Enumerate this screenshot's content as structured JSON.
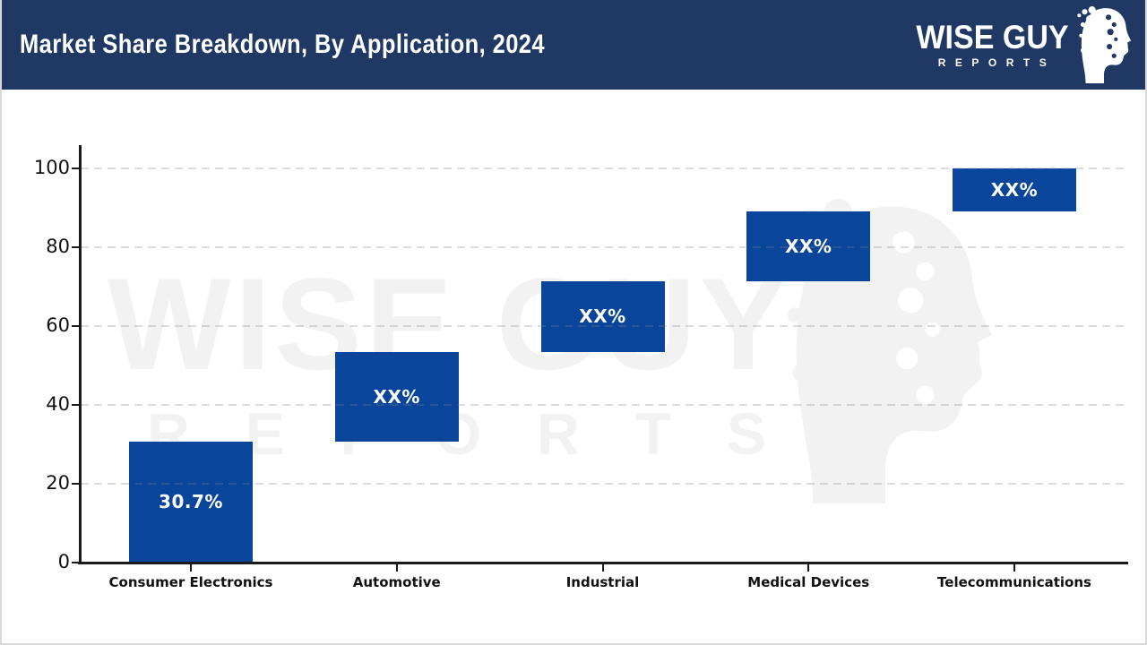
{
  "header": {
    "title": "Market Share Breakdown, By Application, 2024",
    "logo": {
      "line1": "WISE GUY",
      "line2": "REPORTS",
      "face_icon": "dotted-head-profile-icon"
    }
  },
  "watermark": {
    "line1": "WISE GUY",
    "line2": "REPORTS",
    "face_icon": "dotted-head-profile-watermark"
  },
  "colors": {
    "header_bg": "#1f3864",
    "bar": "#0a459c",
    "axis": "#1a1a1a",
    "watermark": "#f2f2f2",
    "grid": "#dfdfdf",
    "title_text": "#ffffff",
    "bar_label_text": "#ffffff"
  },
  "chart_data": {
    "type": "bar",
    "subtype": "waterfall",
    "title": "Market Share Breakdown, By Application, 2024",
    "xlabel": "",
    "ylabel": "",
    "ylim": [
      0,
      100
    ],
    "yticks": [
      0,
      20,
      40,
      60,
      80,
      100
    ],
    "grid": "horizontal-dashed",
    "legend": "none",
    "categories": [
      "Consumer Electronics",
      "Automotive",
      "Industrial",
      "Medical Devices",
      "Telecommunications"
    ],
    "segments": [
      {
        "category": "Consumer Electronics",
        "start": 0,
        "end": 30.7,
        "label": "30.7%"
      },
      {
        "category": "Automotive",
        "start": 30.7,
        "end": 53.5,
        "label": "XX%"
      },
      {
        "category": "Industrial",
        "start": 53.5,
        "end": 71.3,
        "label": "XX%"
      },
      {
        "category": "Medical Devices",
        "start": 71.3,
        "end": 89.2,
        "label": "XX%"
      },
      {
        "category": "Telecommunications",
        "start": 89.2,
        "end": 100,
        "label": "XX%"
      }
    ]
  }
}
